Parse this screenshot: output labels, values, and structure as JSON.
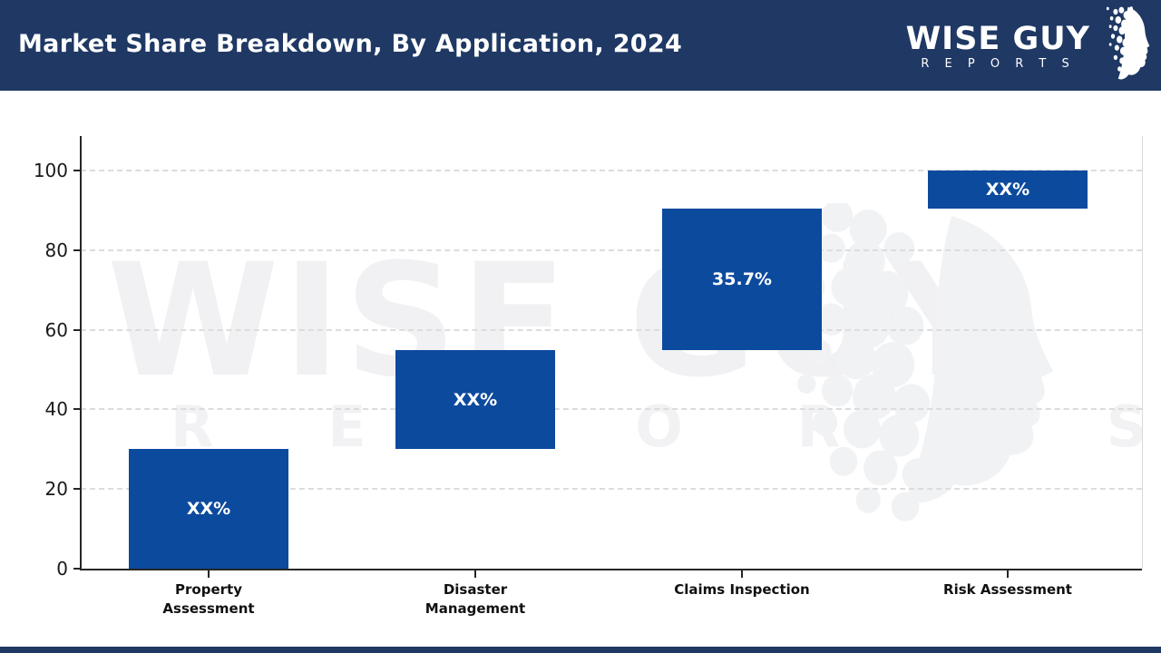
{
  "header": {
    "title": "Market Share Breakdown, By Application, 2024"
  },
  "logo": {
    "line1": "WISE GUY",
    "line2": "R E P O R T S"
  },
  "watermark": {
    "line1": "WISE GUY",
    "line2": "R E P O R T S"
  },
  "chart_data": {
    "type": "bar",
    "subtype": "floating-waterfall",
    "title": "Market Share Breakdown, By Application, 2024",
    "categories": [
      "Property Assessment",
      "Disaster Management",
      "Claims Inspection",
      "Risk Assessment"
    ],
    "category_lines": [
      [
        "Property",
        "Assessment"
      ],
      [
        "Disaster",
        "Management"
      ],
      [
        "Claims Inspection"
      ],
      [
        "Risk Assessment"
      ]
    ],
    "segments": [
      {
        "category": "Property Assessment",
        "start": 0,
        "end": 30,
        "label": "XX%"
      },
      {
        "category": "Disaster Management",
        "start": 30,
        "end": 54.8,
        "label": "XX%"
      },
      {
        "category": "Claims Inspection",
        "start": 54.8,
        "end": 90.5,
        "label": "35.7%"
      },
      {
        "category": "Risk Assessment",
        "start": 90.5,
        "end": 100,
        "label": "XX%"
      }
    ],
    "values": [
      30,
      24.8,
      35.7,
      9.5
    ],
    "xlabel": "",
    "ylabel": "",
    "yticks": [
      0,
      20,
      40,
      60,
      80,
      100
    ],
    "ylim": [
      0,
      100
    ],
    "grid": "horizontal-dashed",
    "legend": "none",
    "bar_color": "#0c4a9e",
    "value_label_color": "#ffffff"
  },
  "colors": {
    "header_bg": "#1f3864",
    "footer_bg": "#1f3864",
    "bar": "#0c4a9e",
    "gridline": "#dcdcdc",
    "axis": "#262626",
    "watermark": "#f1f2f4"
  }
}
